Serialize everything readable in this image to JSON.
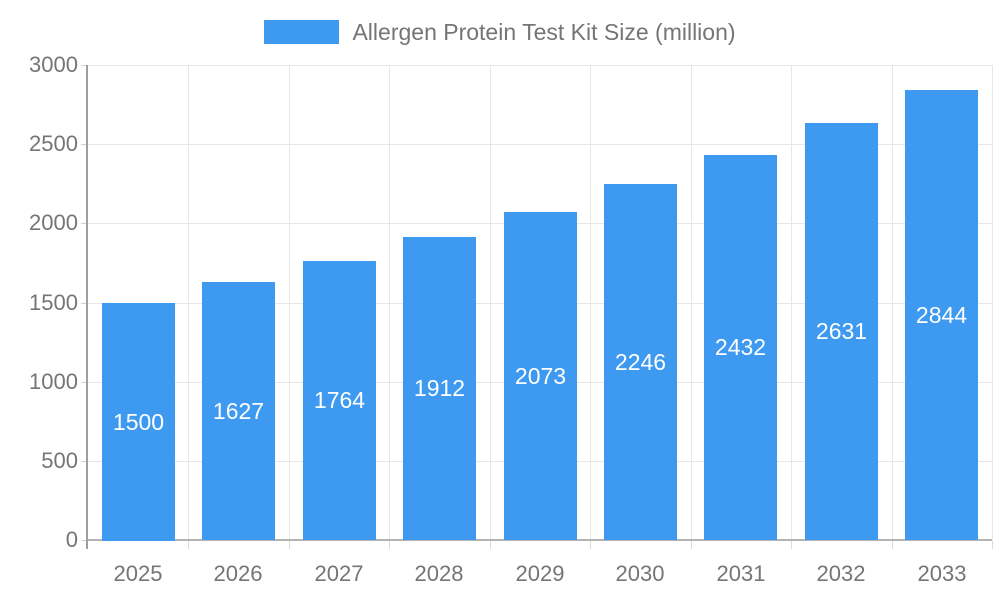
{
  "chart_data": {
    "type": "bar",
    "title": "",
    "legend_label": "Allergen Protein Test Kit Size (million)",
    "legend_position": "top",
    "categories": [
      "2025",
      "2026",
      "2027",
      "2028",
      "2029",
      "2030",
      "2031",
      "2032",
      "2033"
    ],
    "values": [
      1500,
      1627,
      1764,
      1912,
      2073,
      2246,
      2432,
      2631,
      2844
    ],
    "xlabel": "",
    "ylabel": "",
    "ylim": [
      0,
      3000
    ],
    "yticks": [
      0,
      500,
      1000,
      1500,
      2000,
      2500,
      3000
    ],
    "grid": true,
    "colors": {
      "bar": "#3d9af0",
      "bar_label": "#ffffff",
      "axis_text": "#757575",
      "gridline": "#e6e6e6",
      "y_axis_line": "#9e9e9e",
      "x_axis_line": "#b3b3b3",
      "background": "#ffffff"
    }
  }
}
